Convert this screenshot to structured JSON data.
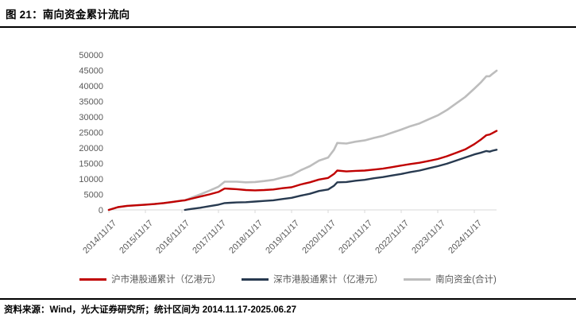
{
  "page": {
    "title": "图 21：南向资金累计流向",
    "footer": "资料来源：Wind，光大证券研究所；统计区间为 2014.11.17-2025.06.27"
  },
  "colors": {
    "sh_line": "#C00000",
    "sz_line": "#283A50",
    "total_line": "#BDBDBD",
    "axis_line": "#D9D9D9",
    "axis_text": "#595959",
    "legend_text": "#595959",
    "rule": "#000000"
  },
  "chart_data": {
    "type": "line",
    "title": "",
    "xlabel": "",
    "ylabel": "",
    "grid": false,
    "legend_position": "bottom",
    "ylim": [
      0,
      50000
    ],
    "yticks": [
      0,
      5000,
      10000,
      15000,
      20000,
      25000,
      30000,
      35000,
      40000,
      45000,
      50000
    ],
    "xtick_labels": [
      "2014/11/17",
      "2015/11/17",
      "2016/11/17",
      "2017/11/17",
      "2018/11/17",
      "2019/11/17",
      "2020/11/17",
      "2021/11/17",
      "2022/11/17",
      "2023/11/17",
      "2024/11/17"
    ],
    "x_range_dates": "2014.11.17-2025.06.27",
    "x": [
      2014.88,
      2015.13,
      2015.38,
      2015.63,
      2015.88,
      2016.13,
      2016.38,
      2016.63,
      2016.88,
      2016.96,
      2017.13,
      2017.38,
      2017.63,
      2017.88,
      2018.05,
      2018.21,
      2018.38,
      2018.63,
      2018.88,
      2019.13,
      2019.38,
      2019.63,
      2019.88,
      2020.13,
      2020.38,
      2020.63,
      2020.88,
      2021.04,
      2021.13,
      2021.38,
      2021.63,
      2021.88,
      2022.13,
      2022.38,
      2022.63,
      2022.88,
      2023.13,
      2023.38,
      2023.63,
      2023.88,
      2024.13,
      2024.38,
      2024.63,
      2024.88,
      2025.05,
      2025.21,
      2025.3,
      2025.38,
      2025.49
    ],
    "series": [
      {
        "key": "sh-connect-cumulative",
        "name": "沪市港股通累计（亿港元）",
        "color": "#C00000",
        "width": 2.4,
        "values": [
          0,
          900,
          1300,
          1500,
          1700,
          1900,
          2200,
          2600,
          3000,
          3100,
          3600,
          4300,
          5000,
          5800,
          6900,
          6800,
          6700,
          6400,
          6300,
          6400,
          6600,
          7000,
          7300,
          8200,
          8900,
          9800,
          10300,
          11600,
          12700,
          12400,
          12600,
          12700,
          13000,
          13300,
          13800,
          14300,
          14800,
          15200,
          15800,
          16400,
          17300,
          18400,
          19500,
          21200,
          22600,
          24100,
          24300,
          24800,
          25500
        ]
      },
      {
        "key": "sz-connect-cumulative",
        "name": "深市港股通累计（亿港元）",
        "color": "#283A50",
        "width": 2.4,
        "values": [
          null,
          null,
          null,
          null,
          null,
          null,
          null,
          null,
          null,
          0,
          300,
          700,
          1200,
          1700,
          2200,
          2300,
          2400,
          2500,
          2700,
          2900,
          3100,
          3500,
          3900,
          4600,
          5200,
          6100,
          6600,
          7800,
          8900,
          9000,
          9400,
          9700,
          10200,
          10600,
          11100,
          11600,
          12200,
          12700,
          13400,
          14100,
          14900,
          15900,
          16900,
          17900,
          18400,
          19000,
          18800,
          19100,
          19400
        ]
      },
      {
        "key": "southbound-total",
        "name": "南向资金(合计)",
        "color": "#BDBDBD",
        "width": 2.6,
        "values": [
          0,
          900,
          1300,
          1500,
          1700,
          1900,
          2200,
          2600,
          3000,
          3100,
          3900,
          5000,
          6200,
          7500,
          9100,
          9100,
          9100,
          8900,
          9000,
          9300,
          9700,
          10500,
          11200,
          12800,
          14100,
          15900,
          16900,
          19400,
          21600,
          21400,
          22000,
          22400,
          23200,
          23900,
          24900,
          25900,
          27000,
          27900,
          29200,
          30500,
          32200,
          34300,
          36400,
          39100,
          41000,
          43100,
          43100,
          43900,
          44900
        ]
      }
    ]
  }
}
